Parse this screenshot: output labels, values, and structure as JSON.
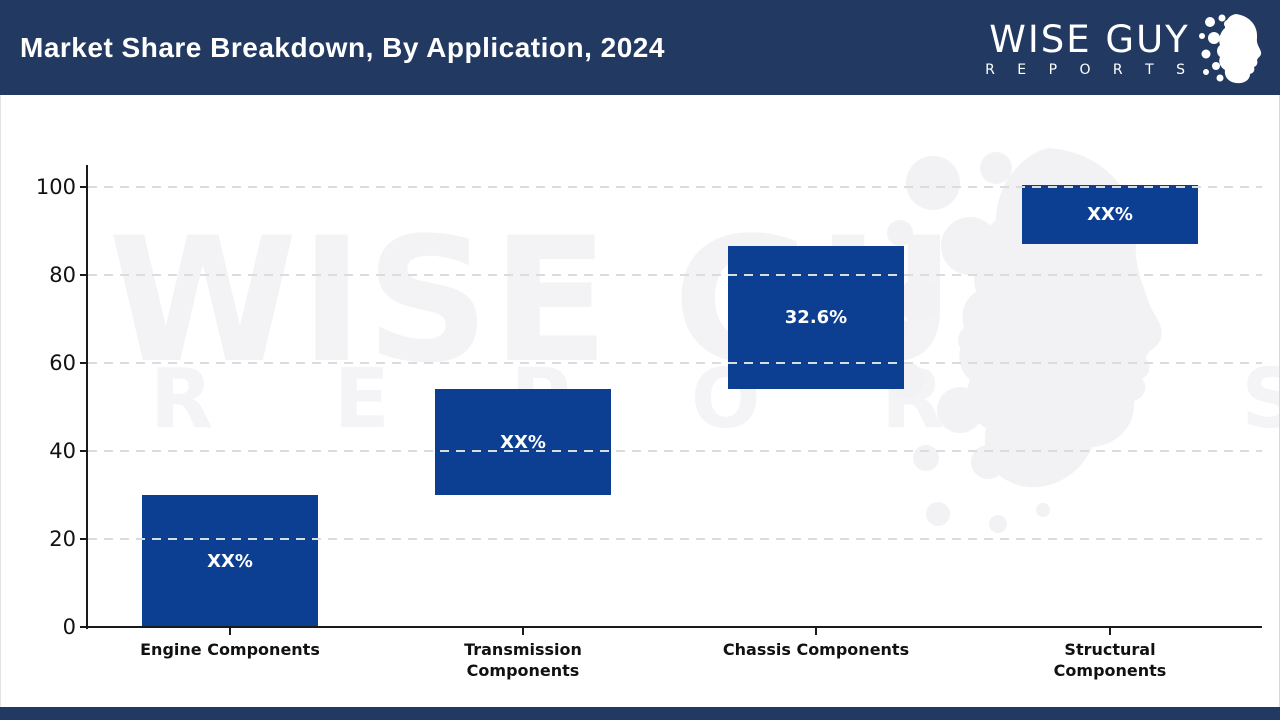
{
  "header": {
    "title": "Market Share Breakdown, By Application, 2024",
    "bg_color": "#223a62",
    "logo": {
      "line1": "WISE GUY",
      "line2": "R E P O R T S"
    }
  },
  "watermark": {
    "line1": "WISE GUY",
    "line2": "R E P O R T S"
  },
  "chart_data": {
    "type": "bar",
    "variant": "floating-segment-bars (stacked percent breakdown)",
    "title": "Market Share Breakdown, By Application, 2024",
    "categories": [
      "Engine Components",
      "Transmission Components",
      "Chassis Components",
      "Structural Components"
    ],
    "category_label_lines": [
      [
        "Engine Components"
      ],
      [
        "Transmission",
        "Components"
      ],
      [
        "Chassis Components"
      ],
      [
        "Structural",
        "Components"
      ]
    ],
    "segments": [
      {
        "category": "Engine Components",
        "start": 0,
        "end": 30,
        "label": "XX%"
      },
      {
        "category": "Transmission Components",
        "start": 30,
        "end": 54,
        "label": "XX%"
      },
      {
        "category": "Chassis Components",
        "start": 54.1,
        "end": 86.7,
        "label": "32.6%"
      },
      {
        "category": "Structural Components",
        "start": 87,
        "end": 100.5,
        "label": "XX%"
      }
    ],
    "yticks": [
      0,
      20,
      40,
      60,
      80,
      100
    ],
    "ylim": [
      0,
      105
    ],
    "xlabel": "",
    "ylabel": "",
    "grid": "horizontal-dashed",
    "legend": "none",
    "bar_color": "#0c3f91",
    "bar_label_color": "#ffffff",
    "axis_color": "#1a1a1a"
  }
}
